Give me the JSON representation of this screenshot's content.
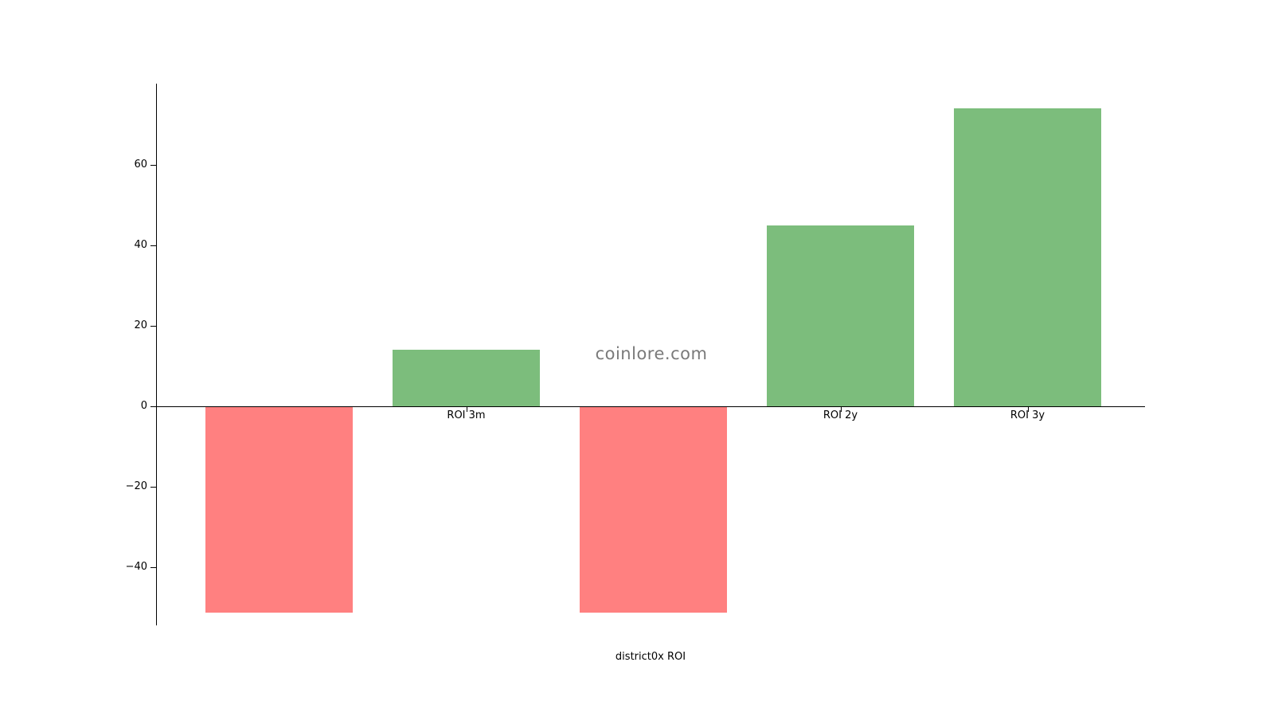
{
  "chart_data": {
    "type": "bar",
    "title": "district0x ROI",
    "xlabel": "district0x ROI",
    "watermark": "coinlore.com",
    "categories": [
      "",
      "ROI 3m",
      "",
      "ROI 2y",
      "ROI 3y"
    ],
    "values": [
      -51,
      14,
      -51,
      45,
      74
    ],
    "yticks": [
      60,
      40,
      20,
      0,
      -20,
      -40
    ],
    "ylim": [
      -54,
      80
    ],
    "grid": false,
    "legend": false,
    "colors": {
      "positive": "#7cbd7c",
      "negative": "#ff8080",
      "axis": "#000000",
      "tick_text": "#000000",
      "watermark": "#7a7a7a"
    }
  }
}
